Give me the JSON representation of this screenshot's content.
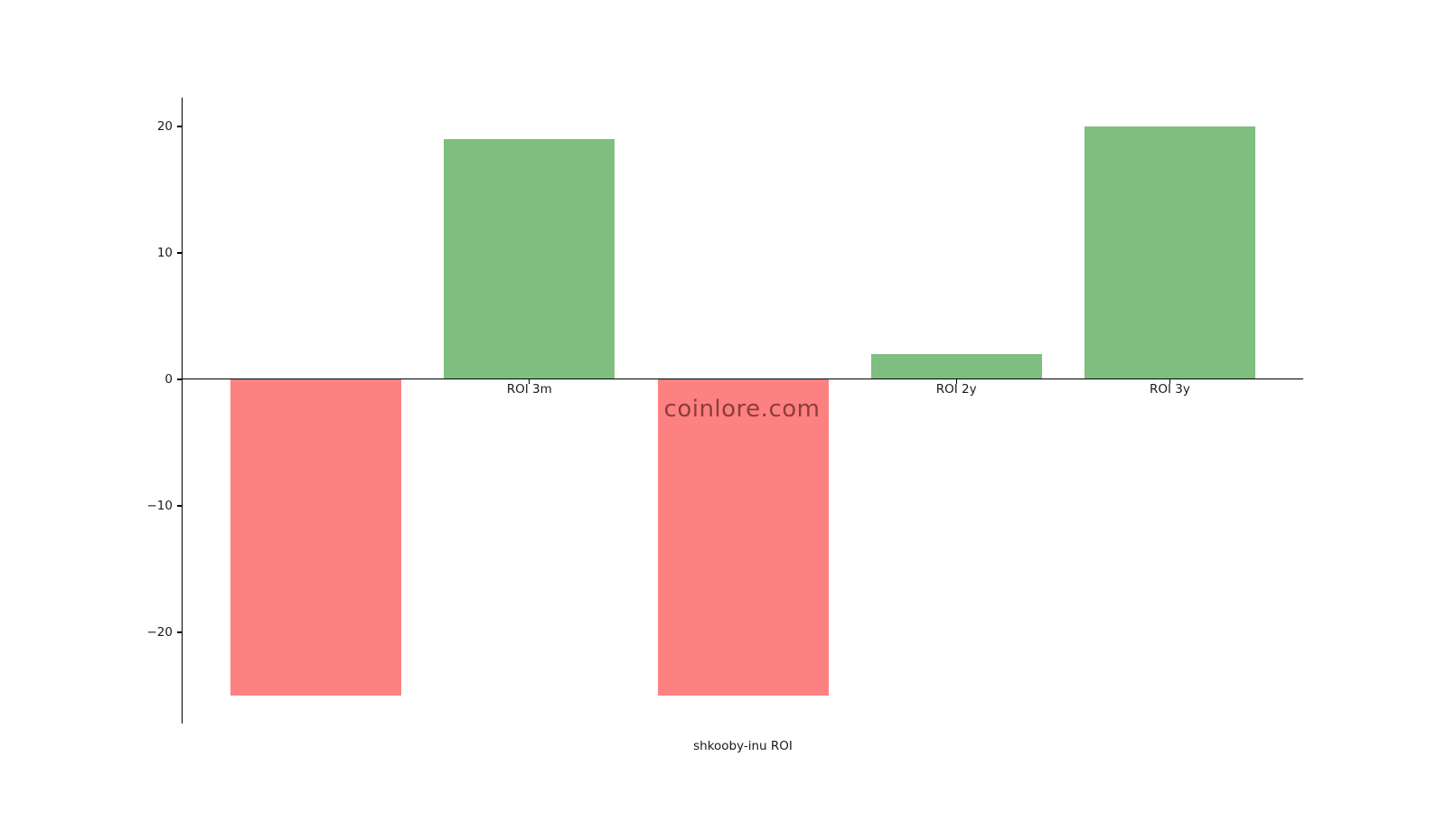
{
  "watermark": {
    "text": "coinlore.com",
    "color": "#8d3c3c"
  },
  "chart_data": {
    "type": "bar",
    "title": "",
    "xlabel": "shkooby-inu ROI",
    "ylabel": "",
    "categories": [
      "",
      "ROI 3m",
      "",
      "ROI 2y",
      "ROI 3y"
    ],
    "values": [
      -25,
      19,
      -25,
      2,
      20
    ],
    "ytick_labels": [
      "20",
      "10",
      "0",
      "−10",
      "−20"
    ],
    "ytick_values": [
      20,
      10,
      0,
      -10,
      -20
    ],
    "ylim": [
      -27.25,
      22.25
    ],
    "positive_color": "#7ebe7e",
    "negative_color": "#fe8181",
    "axis_color": "#000000",
    "background_color": "#ffffff",
    "grid": false,
    "legend": false,
    "note": "x tick labels of negative bars are hidden behind the bars"
  }
}
